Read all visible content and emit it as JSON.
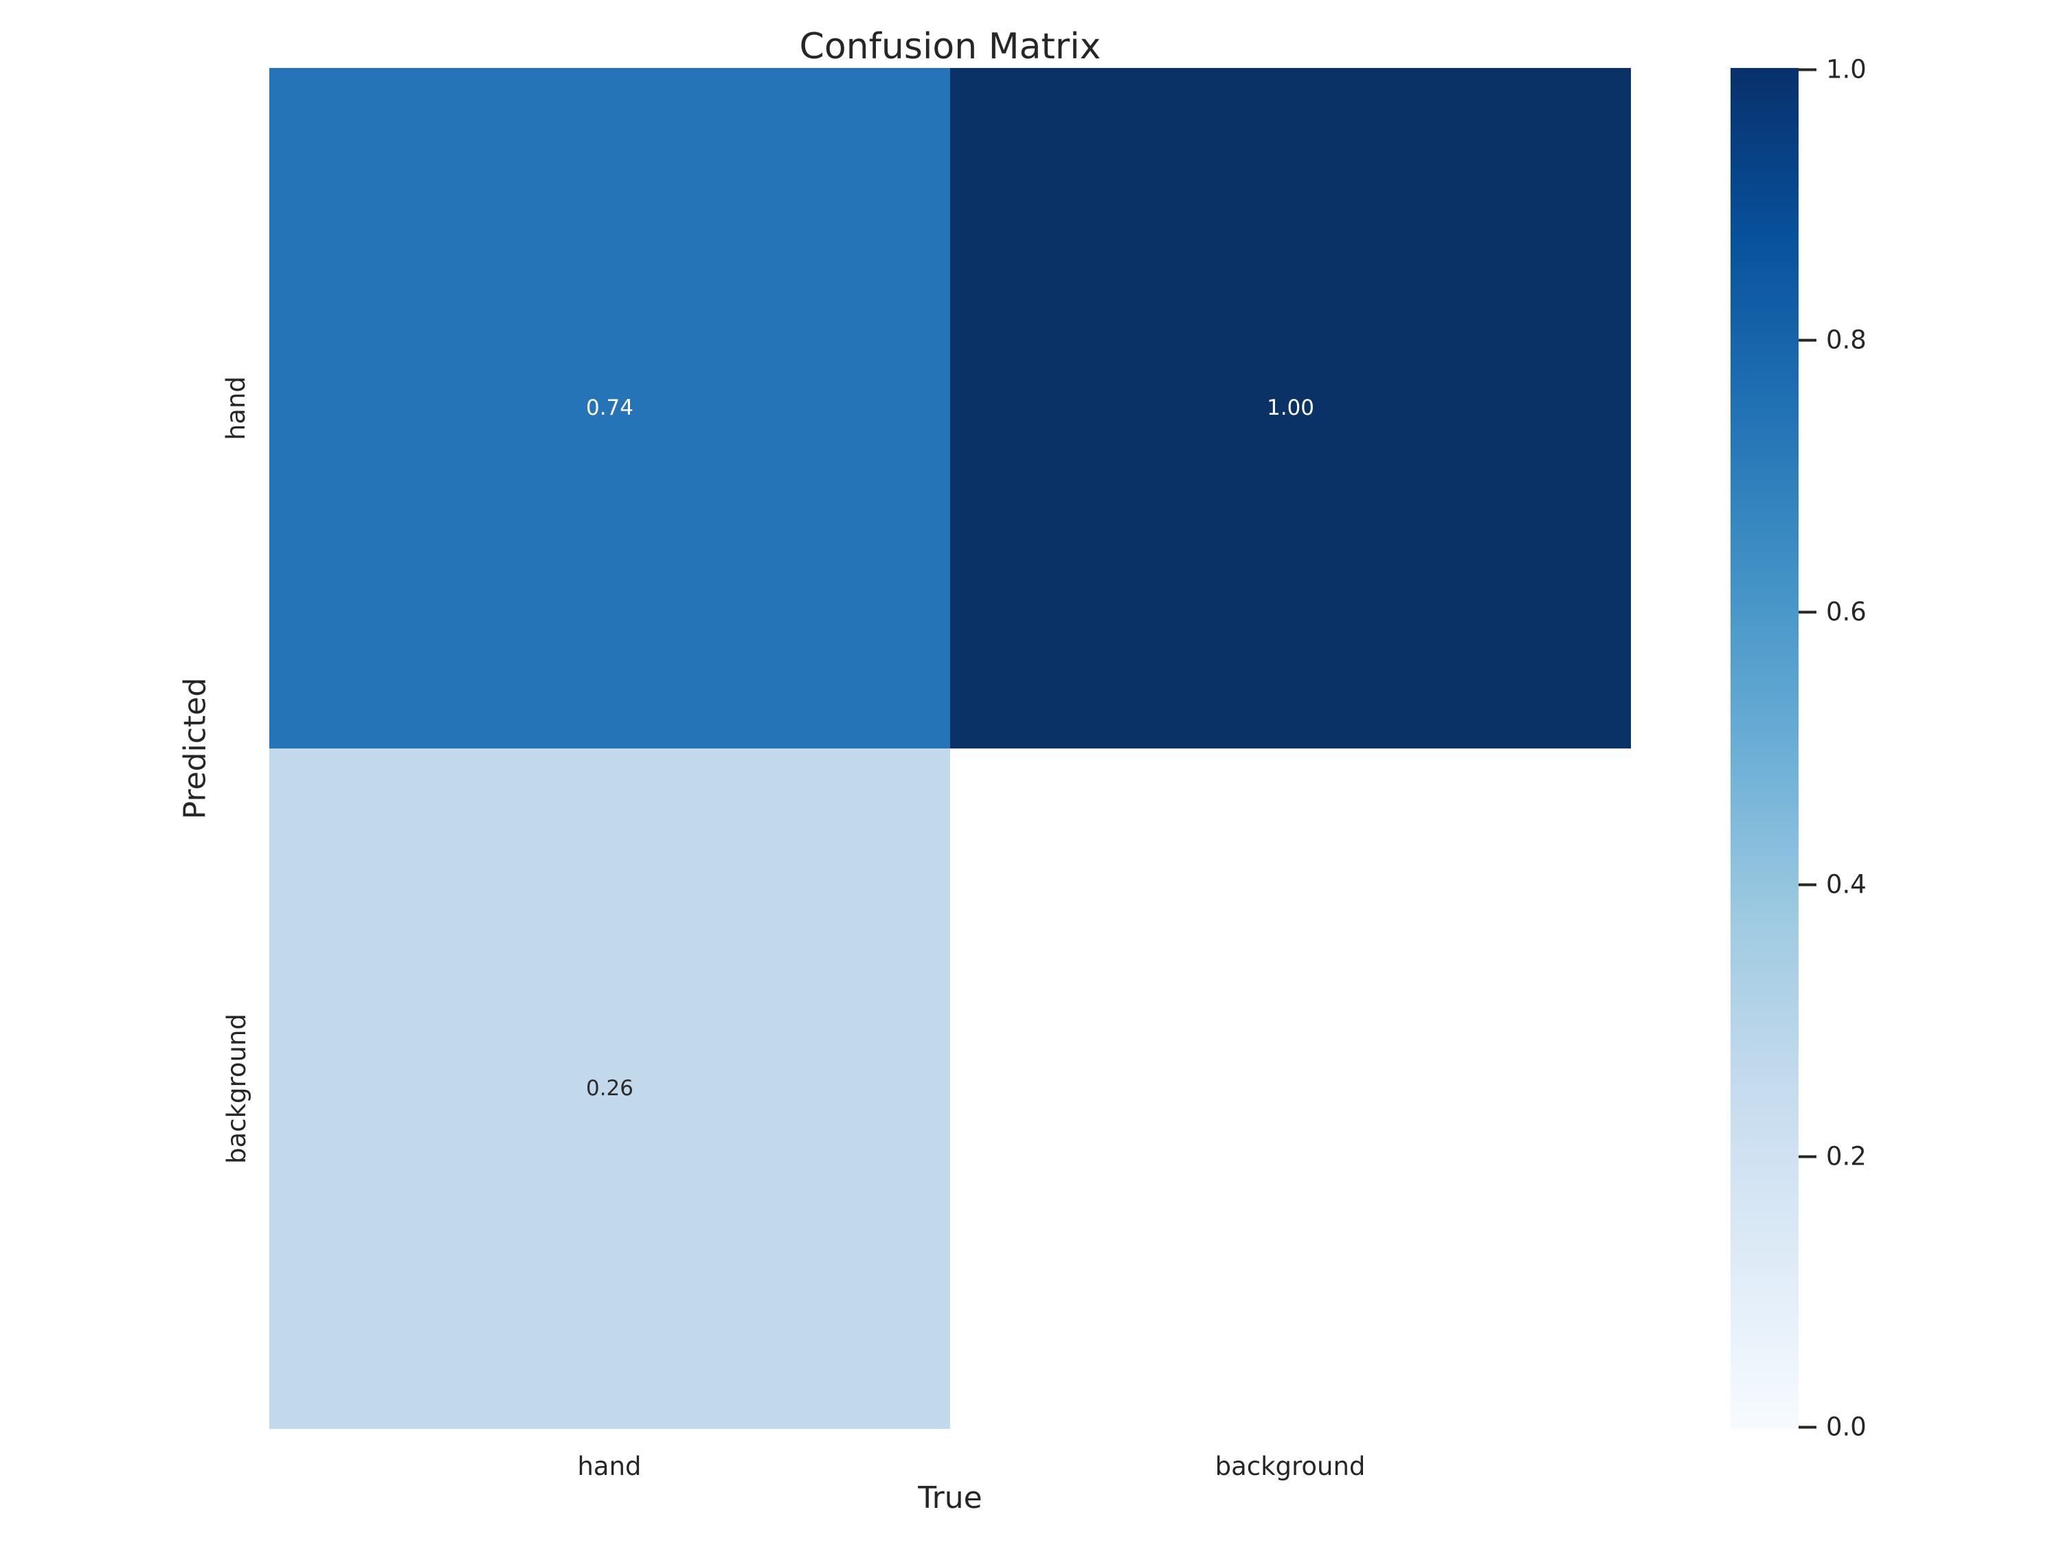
{
  "figure": {
    "background": "#ffffff",
    "text_color": "#262626"
  },
  "chart_data": {
    "type": "heatmap",
    "title": "Confusion Matrix",
    "xlabel": "True",
    "ylabel": "Predicted",
    "x_categories": [
      "hand",
      "background"
    ],
    "y_categories": [
      "hand",
      "background"
    ],
    "vmin": 0.0,
    "vmax": 1.0,
    "colormap": "Blues",
    "grid": false,
    "legend_position": "colorbar-right",
    "values": [
      [
        0.74,
        1.0
      ],
      [
        0.26,
        null
      ]
    ],
    "cells": [
      [
        {
          "value": "0.74",
          "bg": "#2474b7",
          "fg": "#ffffff"
        },
        {
          "value": "1.00",
          "bg": "#0b3266",
          "fg": "#ffffff"
        }
      ],
      [
        {
          "value": "0.26",
          "bg": "#c2d9ec",
          "fg": "#2b2b2b"
        },
        {
          "value": "",
          "bg": "#ffffff",
          "fg": "#262626"
        }
      ]
    ],
    "colorbar": {
      "ticks": [
        "1.0",
        "0.8",
        "0.6",
        "0.4",
        "0.2",
        "0.0"
      ],
      "gradient_top_to_bottom": [
        "#08306b",
        "#08519c",
        "#2171b5",
        "#4292c6",
        "#6baed6",
        "#9ecae1",
        "#c6dbef",
        "#deebf7",
        "#f7fbff"
      ]
    }
  }
}
